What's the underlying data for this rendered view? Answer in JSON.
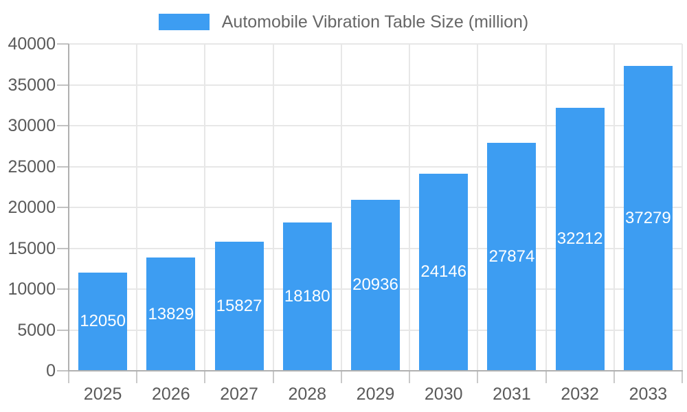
{
  "chart_data": {
    "type": "bar",
    "title": "Automobile Vibration Table Size (million)",
    "series_name": "Automobile Vibration Table Size (million)",
    "categories": [
      "2025",
      "2026",
      "2027",
      "2028",
      "2029",
      "2030",
      "2031",
      "2032",
      "2033"
    ],
    "values": [
      12050,
      13829,
      15827,
      18180,
      20936,
      24146,
      27874,
      32212,
      37279
    ],
    "xlabel": "",
    "ylabel": "",
    "ylim": [
      0,
      40000
    ],
    "yticks": [
      0,
      5000,
      10000,
      15000,
      20000,
      25000,
      30000,
      35000,
      40000
    ],
    "grid": true,
    "legend_position": "top",
    "value_labels": "inside-center",
    "colors": {
      "bar": "#3D9DF2",
      "bar_label_text": "#ffffff",
      "axis_line": "#b0b0b0",
      "grid_line": "#e7e7e7",
      "tick_text": "#5a5a5a",
      "legend_text": "#666666",
      "background": "#ffffff"
    }
  }
}
